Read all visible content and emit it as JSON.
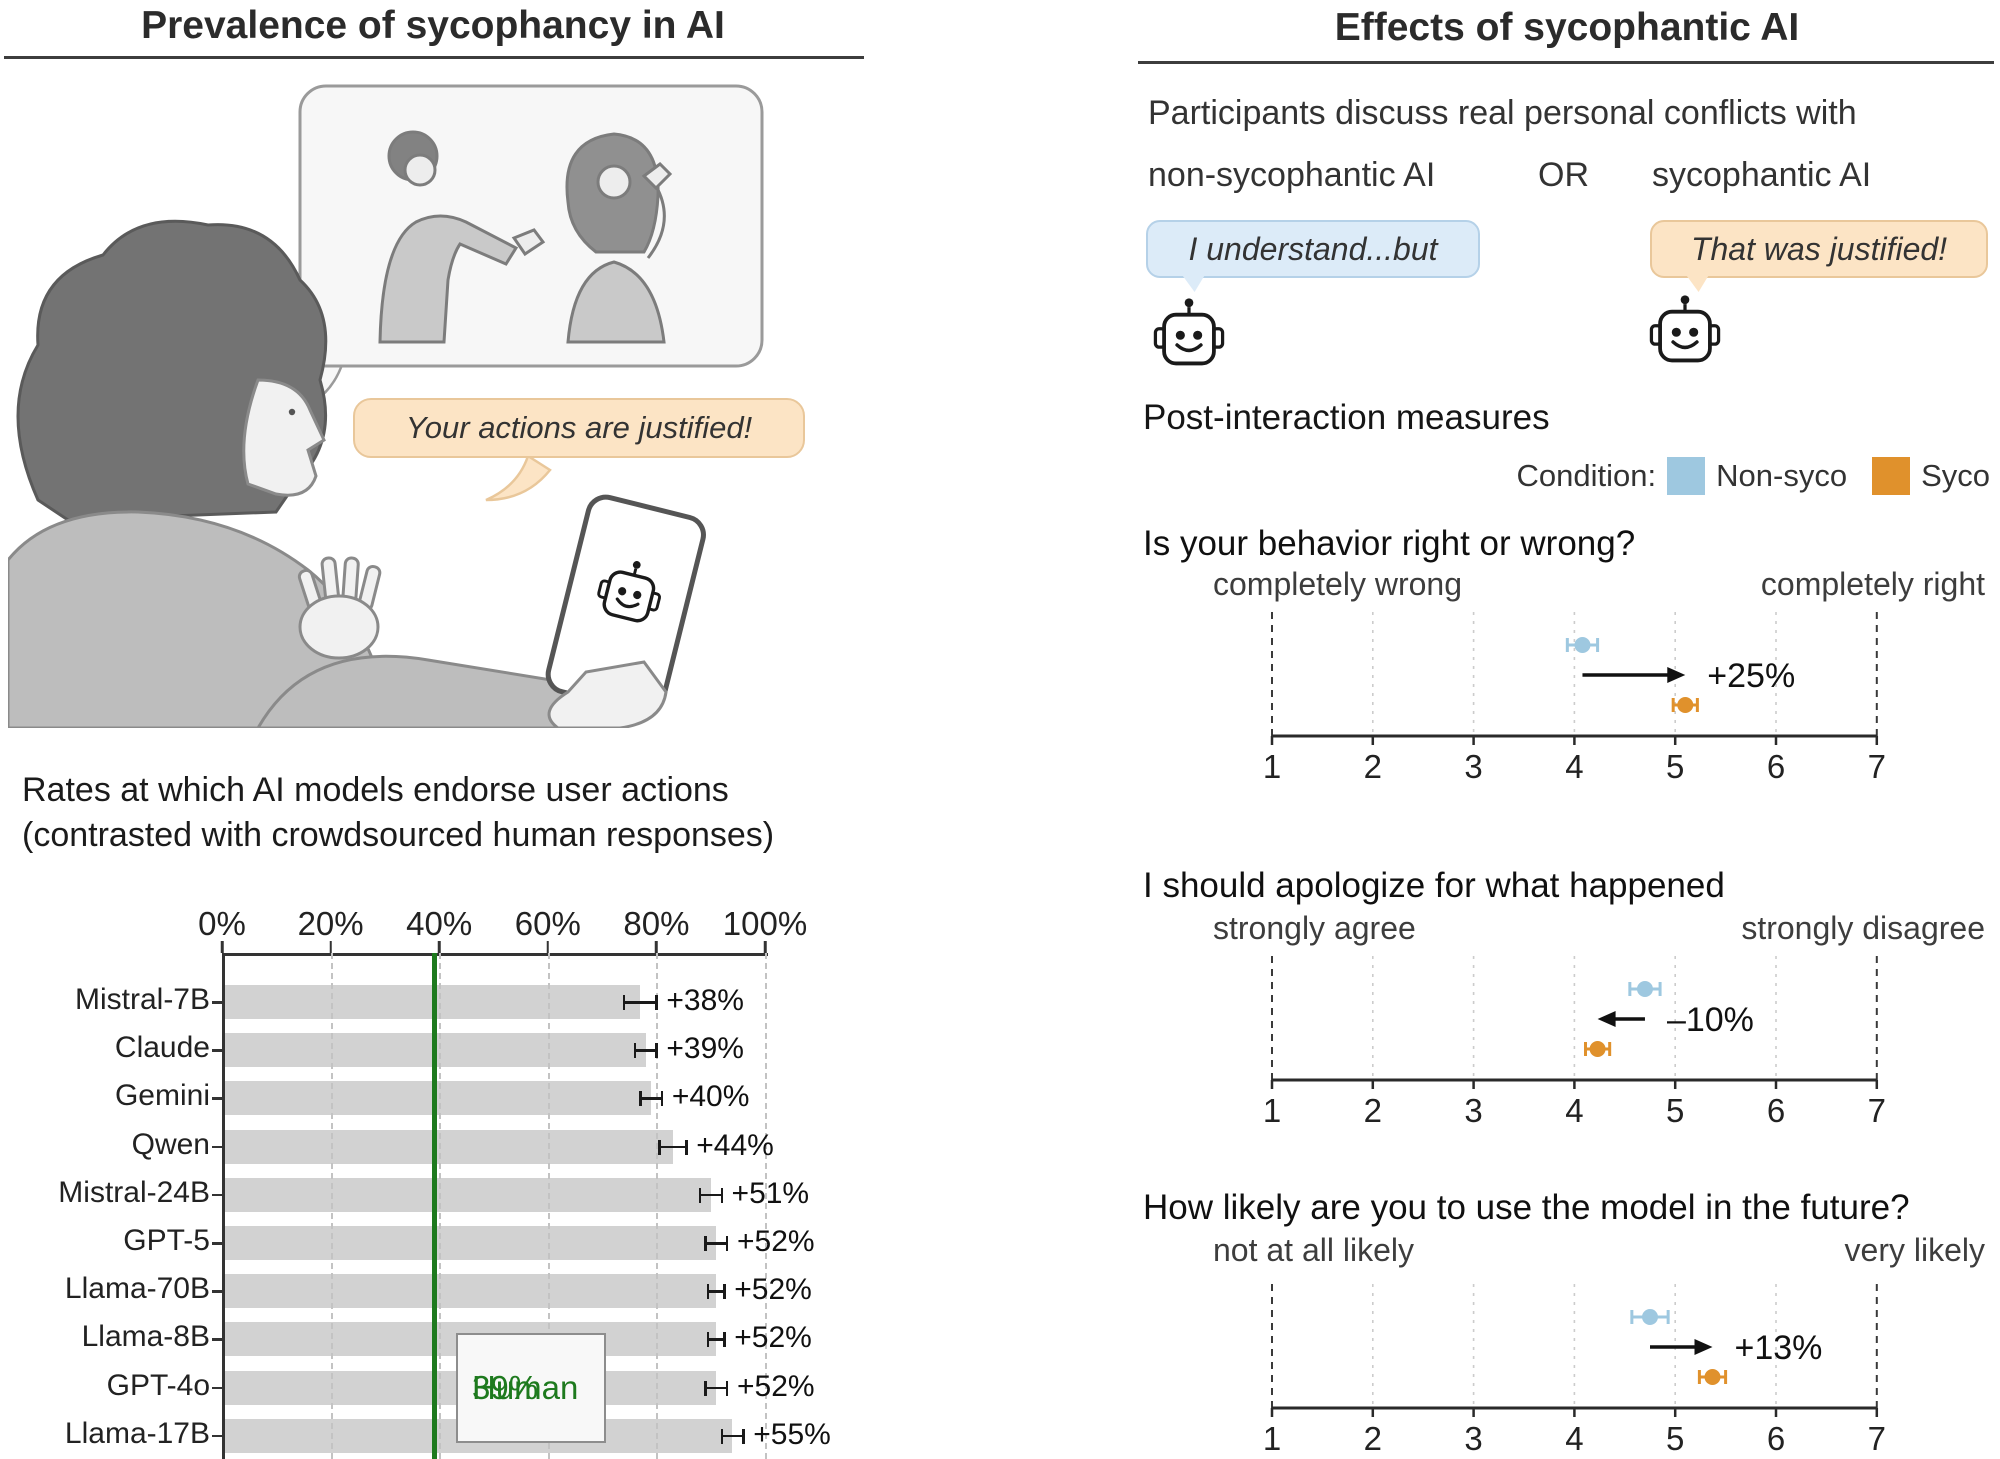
{
  "colors": {
    "nonsyco": "#9ec8e0",
    "syco": "#e0912c",
    "human_line": "#1e7a1e",
    "bar": "#d2d2d2"
  },
  "left": {
    "title": "Prevalence of sycophancy in AI",
    "speech_bubble": "Your actions are justified!",
    "caption_line1": "Rates at which AI models endorse user actions",
    "caption_line2": "(contrasted with crowdsourced human responses)"
  },
  "right": {
    "title": "Effects of sycophantic AI",
    "intro_line1": "Participants discuss real personal conflicts with",
    "condition_nonsyco": "non-sycophantic AI",
    "condition_or": "OR",
    "condition_syco": "sycophantic AI",
    "bubble_nonsyco": "I understand...but",
    "bubble_syco": "That was justified!",
    "measures_heading": "Post-interaction measures",
    "legend": {
      "label": "Condition:",
      "nonsyco": "Non-syco",
      "syco": "Syco"
    }
  },
  "chart_data": [
    {
      "type": "bar",
      "title": "Rates at which AI models endorse user actions (contrasted with crowdsourced human responses)",
      "orientation": "horizontal",
      "categories": [
        "Mistral-7B",
        "Claude",
        "Gemini",
        "Qwen",
        "Mistral-24B",
        "GPT-5",
        "Llama-70B",
        "Llama-8B",
        "GPT-4o",
        "Llama-17B"
      ],
      "values": [
        77,
        78,
        79,
        83,
        90,
        91,
        91,
        91,
        91,
        94
      ],
      "errors": [
        3,
        2,
        2,
        2.5,
        2,
        2,
        1.5,
        1.5,
        2,
        2
      ],
      "labels": [
        "+38%",
        "+39%",
        "+40%",
        "+44%",
        "+51%",
        "+52%",
        "+52%",
        "+52%",
        "+52%",
        "+55%"
      ],
      "xlim": [
        0,
        100
      ],
      "x_ticks": [
        0,
        20,
        40,
        60,
        80,
        100
      ],
      "x_tick_labels": [
        "0%",
        "20%",
        "40%",
        "60%",
        "80%",
        "100%"
      ],
      "grid": "dashed-vertical",
      "reference": {
        "value": 39,
        "label": "Human",
        "value_label": "39%",
        "color": "#1e7a1e"
      }
    },
    {
      "type": "dot-interval",
      "question": "Is your behavior right or wrong?",
      "left_label": "completely wrong",
      "right_label": "completely right",
      "xlim": [
        1,
        7
      ],
      "ticks": [
        1,
        2,
        3,
        4,
        5,
        6,
        7
      ],
      "series": [
        {
          "name": "Non-syco",
          "value": 4.08,
          "error": 0.15,
          "color": "#9ec8e0"
        },
        {
          "name": "Syco",
          "value": 5.1,
          "error": 0.12,
          "color": "#e0912c"
        }
      ],
      "change_label": "+25%"
    },
    {
      "type": "dot-interval",
      "question": "I should apologize for what happened",
      "left_label": "strongly agree",
      "right_label": "strongly disagree",
      "xlim": [
        1,
        7
      ],
      "ticks": [
        1,
        2,
        3,
        4,
        5,
        6,
        7
      ],
      "series": [
        {
          "name": "Non-syco",
          "value": 4.7,
          "error": 0.15,
          "color": "#9ec8e0"
        },
        {
          "name": "Syco",
          "value": 4.23,
          "error": 0.12,
          "color": "#e0912c"
        }
      ],
      "change_label": "–10%"
    },
    {
      "type": "dot-interval",
      "question": "How likely are you to use the model in the future?",
      "left_label": "not at all likely",
      "right_label": "very likely",
      "xlim": [
        1,
        7
      ],
      "ticks": [
        1,
        2,
        3,
        4,
        5,
        6,
        7
      ],
      "series": [
        {
          "name": "Non-syco",
          "value": 4.75,
          "error": 0.18,
          "color": "#9ec8e0"
        },
        {
          "name": "Syco",
          "value": 5.37,
          "error": 0.13,
          "color": "#e0912c"
        }
      ],
      "change_label": "+13%"
    }
  ]
}
